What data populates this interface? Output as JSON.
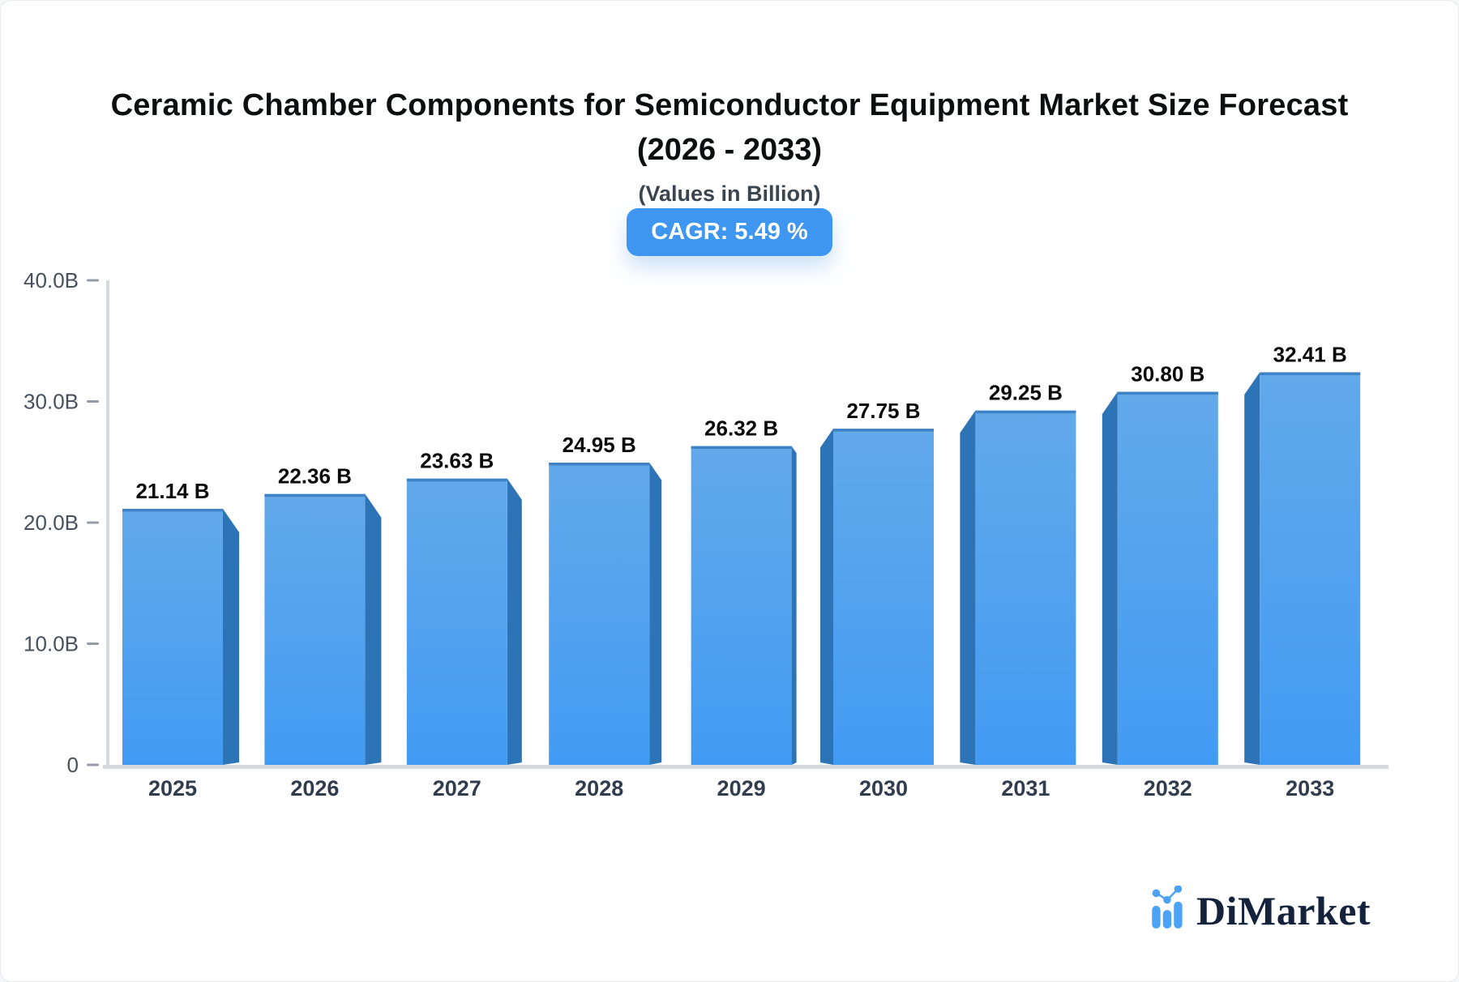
{
  "header": {
    "title_line1": "Ceramic Chamber Components for Semiconductor Equipment Market Size Forecast",
    "title_line2": "(2026 - 2033)",
    "subtitle": "(Values in Billion)",
    "cagr_badge_label": "CAGR: 5.49 %"
  },
  "footer": {
    "brand": "DiMarket"
  },
  "chart_data": {
    "type": "bar",
    "title": "Ceramic Chamber Components for Semiconductor Equipment Market Size Forecast (2026 - 2033)",
    "subtitle": "(Values in Billion)",
    "cagr_percent": 5.49,
    "categories": [
      "2025",
      "2026",
      "2027",
      "2028",
      "2029",
      "2030",
      "2031",
      "2032",
      "2033"
    ],
    "values": [
      21.14,
      22.36,
      23.63,
      24.95,
      26.32,
      27.75,
      29.25,
      30.8,
      32.41
    ],
    "value_labels": [
      "21.14 B",
      "22.36 B",
      "23.63 B",
      "24.95 B",
      "26.32 B",
      "27.75 B",
      "29.25 B",
      "30.80 B",
      "32.41 B"
    ],
    "xlabel": "",
    "ylabel": "",
    "ylim": [
      0,
      40
    ],
    "yticks": [
      {
        "value": 40,
        "label": "40.0B"
      },
      {
        "value": 30,
        "label": "30.0B"
      },
      {
        "value": 20,
        "label": "20.0B"
      },
      {
        "value": 10,
        "label": "10.0B"
      },
      {
        "value": 0,
        "label": "0"
      }
    ],
    "grid": false,
    "legend": false
  },
  "colors": {
    "bar_front_top": "#62a9ea",
    "bar_front_bottom": "#429bf3",
    "bar_side": "#2c74b6",
    "bar_top_edge": "#3f83c6",
    "axis_line": "#d6d9dd",
    "tick_dash": "#949ba5",
    "badge_bg": "#3f96f0",
    "badge_text": "#ffffff",
    "logo_blue": "#4ca2f5",
    "logo_navy": "#15223c"
  }
}
